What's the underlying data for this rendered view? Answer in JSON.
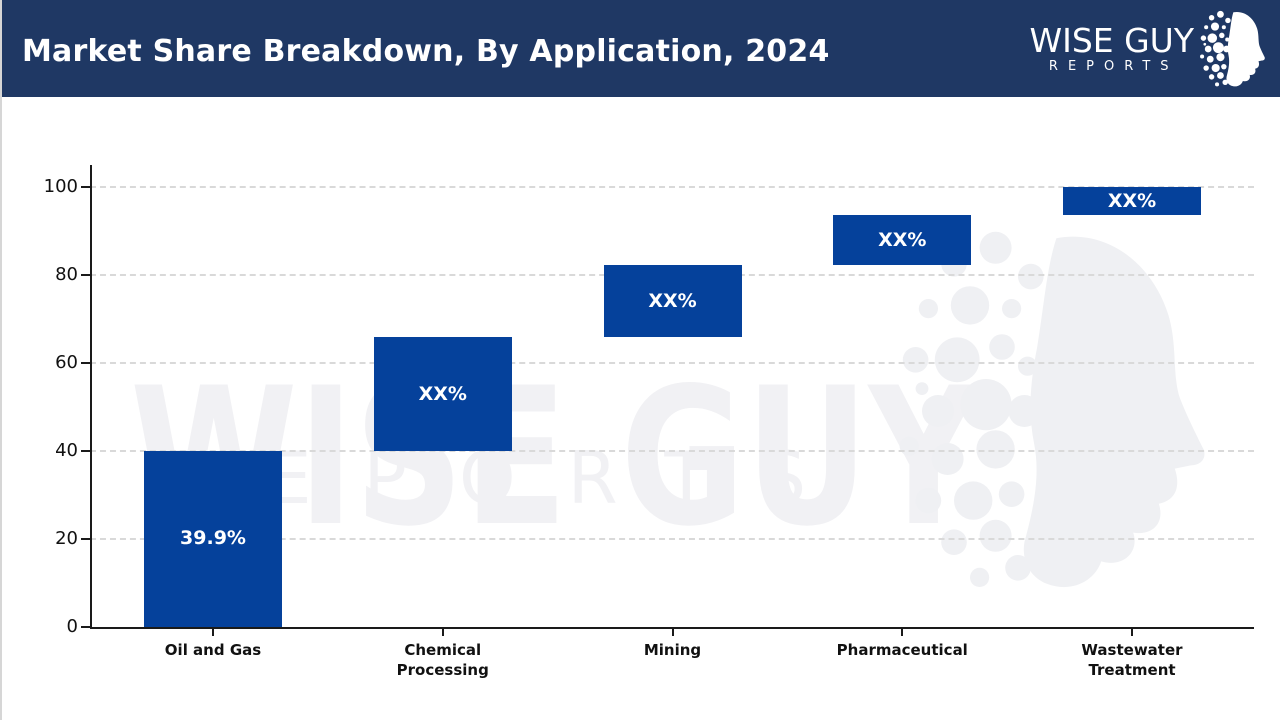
{
  "header": {
    "title": "Market Share Breakdown, By Application, 2024",
    "logo": {
      "line1": "WISE GUY",
      "line2": "REPORTS"
    },
    "bg_color": "#1f3864"
  },
  "watermark": {
    "line1": "WISE GUY",
    "line2": "REPORTS"
  },
  "chart_data": {
    "type": "bar",
    "subtype": "waterfall",
    "title": "Market Share Breakdown, By Application, 2024",
    "xlabel": "",
    "ylabel": "",
    "categories": [
      "Oil and Gas",
      "Chemical Processing",
      "Mining",
      "Pharmaceutical",
      "Wastewater Treatment"
    ],
    "segments": [
      {
        "category": "Oil and Gas",
        "start": 0,
        "end": 39.9,
        "label": "39.9%",
        "value_est": 39.9
      },
      {
        "category": "Chemical Processing",
        "start": 39.9,
        "end": 65.8,
        "label": "XX%",
        "value_est": 25.9
      },
      {
        "category": "Mining",
        "start": 65.8,
        "end": 82.2,
        "label": "XX%",
        "value_est": 16.4
      },
      {
        "category": "Pharmaceutical",
        "start": 82.2,
        "end": 93.6,
        "label": "XX%",
        "value_est": 11.4
      },
      {
        "category": "Wastewater Treatment",
        "start": 93.6,
        "end": 100,
        "label": "XX%",
        "value_est": 6.4
      }
    ],
    "yticks": [
      0,
      20,
      40,
      60,
      80,
      100
    ],
    "ylim": [
      0,
      105
    ],
    "grid": "dashed-horizontal",
    "legend": "none",
    "bar_color": "#05419b",
    "grid_color": "#d9d9d9",
    "label_color_inside": "#ffffff"
  }
}
